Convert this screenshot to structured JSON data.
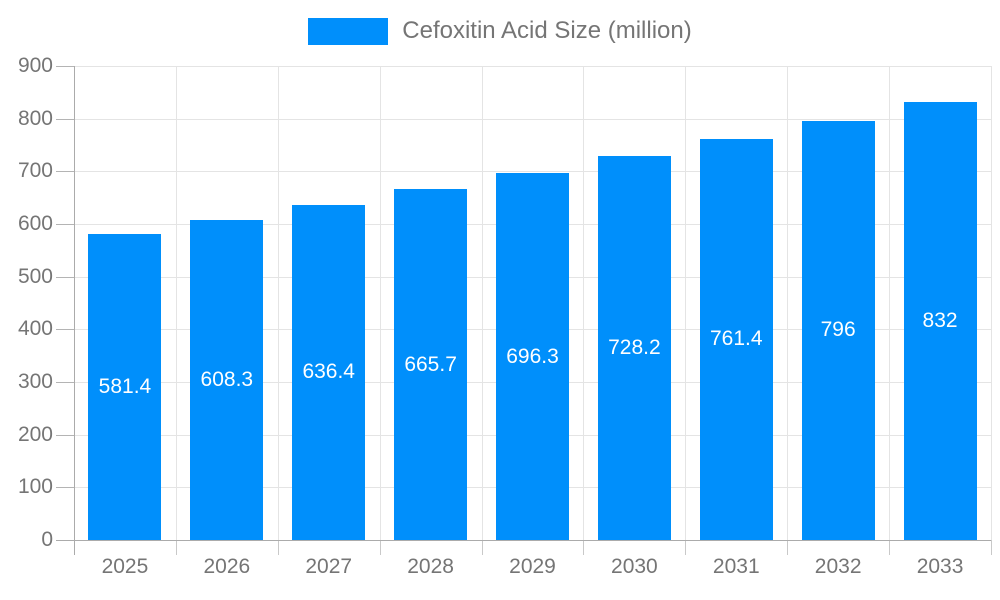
{
  "chart_data": {
    "type": "bar",
    "title": "Cefoxitin Acid Size (million)",
    "categories": [
      "2025",
      "2026",
      "2027",
      "2028",
      "2029",
      "2030",
      "2031",
      "2032",
      "2033"
    ],
    "values": [
      581.4,
      608.3,
      636.4,
      665.7,
      696.3,
      728.2,
      761.4,
      796,
      832
    ],
    "value_labels": [
      "581.4",
      "608.3",
      "636.4",
      "665.7",
      "696.3",
      "728.2",
      "761.4",
      "796",
      "832"
    ],
    "xlabel": "",
    "ylabel": "",
    "ylim": [
      0,
      900
    ],
    "ytick_step": 100,
    "ytick_labels": [
      "0",
      "100",
      "200",
      "300",
      "400",
      "500",
      "600",
      "700",
      "800",
      "900"
    ],
    "grid": true,
    "legend": {
      "position": "top",
      "label": "Cefoxitin Acid Size (million)"
    },
    "colors": {
      "bar": "#008FFB",
      "gridline": "#e4e4e4",
      "axis_line": "#ababab",
      "tick": "#c9c9c9",
      "axis_label_text": "#757575",
      "value_label_text": "#ffffff",
      "background": "#ffffff"
    }
  }
}
